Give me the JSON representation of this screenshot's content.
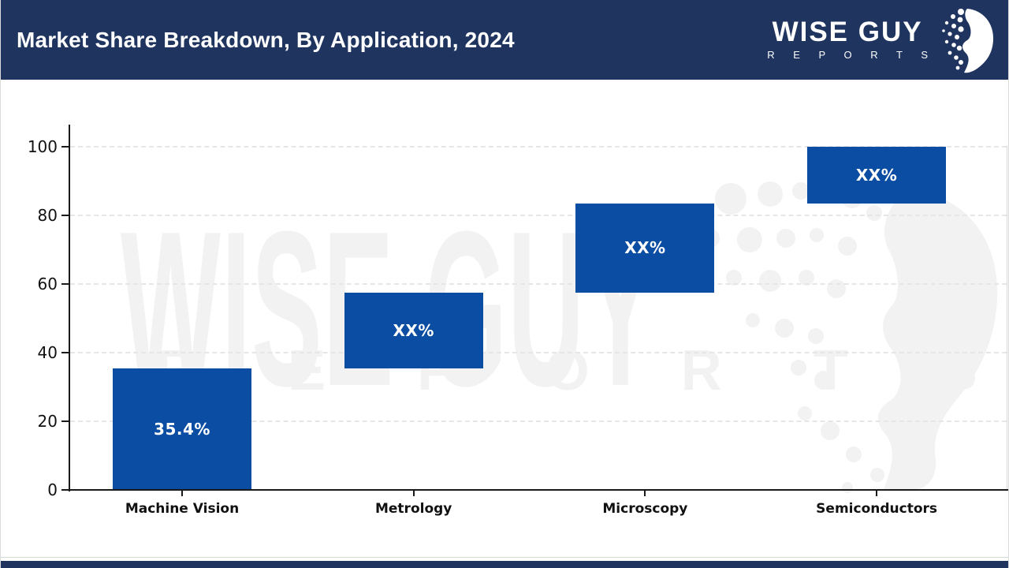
{
  "header": {
    "title": "Market Share Breakdown, By Application, 2024",
    "logo": {
      "name_line": "WISE GUY",
      "sub_line": "R E P O R T S"
    }
  },
  "watermark": {
    "big_text": "WISE GUY",
    "sub_text": "R E P O R T S"
  },
  "chart_data": {
    "type": "bar",
    "variant": "waterfall-breakdown",
    "title": "Market Share Breakdown, By Application, 2024",
    "categories": [
      "Machine Vision",
      "Metrology",
      "Microscopy",
      "Semiconductors"
    ],
    "segments": [
      {
        "category": "Machine Vision",
        "start": 0,
        "end": 35.4,
        "label": "35.4%"
      },
      {
        "category": "Metrology",
        "start": 35.4,
        "end": 57.5,
        "label": "XX%"
      },
      {
        "category": "Microscopy",
        "start": 57.5,
        "end": 83.6,
        "label": "XX%"
      },
      {
        "category": "Semiconductors",
        "start": 83.6,
        "end": 100,
        "label": "XX%"
      }
    ],
    "ylim": [
      0,
      100
    ],
    "y_ticks": [
      0,
      20,
      40,
      60,
      80,
      100
    ],
    "xlabel": "",
    "ylabel": "",
    "legend": "none",
    "grid": "horizontal-dashed",
    "bar_color": "#0b4da2",
    "bar_label_color": "#ffffff",
    "axis_color": "#1a1a1a",
    "grid_color": "#e6e6e6"
  },
  "colors": {
    "header_bg": "#1f355f",
    "footer_bg": "#1f355f",
    "page_bg": "#ffffff",
    "watermark": "#f2f2f2"
  }
}
